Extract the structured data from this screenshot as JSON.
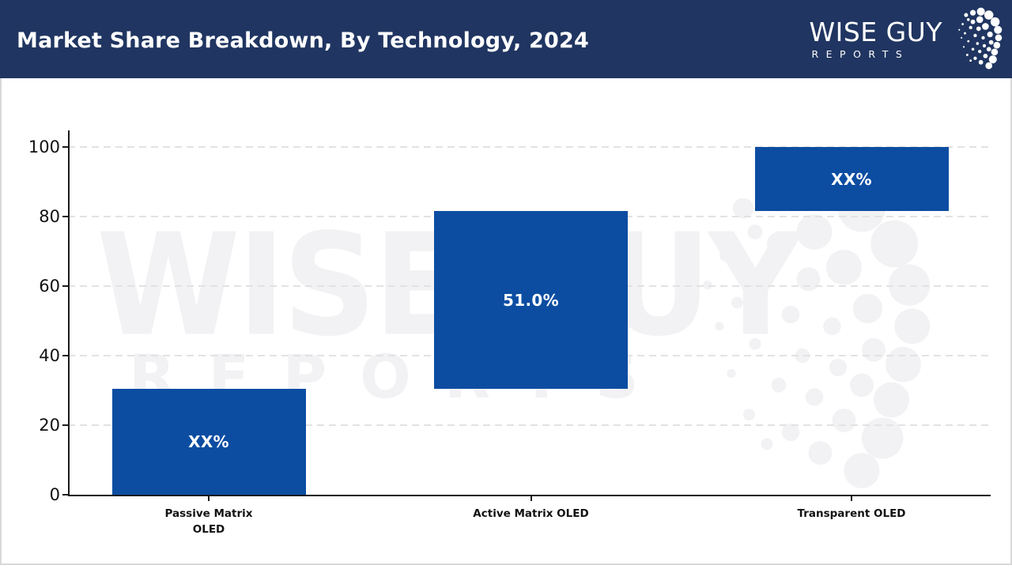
{
  "header": {
    "title": "Market Share Breakdown, By Technology, 2024",
    "logo": {
      "wordmark": "WISE GUY",
      "subtitle": "REPORTS"
    }
  },
  "watermark": {
    "wordmark": "WISE GUY",
    "subtitle": "REPORTS"
  },
  "colors": {
    "header_bg": "#203561",
    "bar_blue": "#0c4da2",
    "watermark_gray": "#f2f2f4",
    "gridline_gray": "#e2e2e2",
    "frame_gray": "#d8d8d8",
    "text_black": "#111111",
    "label_white": "#ffffff"
  },
  "chart_data": {
    "type": "bar",
    "variant": "waterfall-stacked",
    "title": "Market Share Breakdown, By Technology, 2024",
    "categories": [
      "Passive Matrix OLED",
      "Active Matrix OLED",
      "Transparent OLED"
    ],
    "axis_labels": [
      "Passive Matrix\nOLED",
      "Active Matrix OLED",
      "Transparent OLED"
    ],
    "bars": [
      {
        "category": "Passive Matrix OLED",
        "start": 0,
        "end": 30.5,
        "size": 30.5,
        "value_label": "XX%"
      },
      {
        "category": "Active Matrix OLED",
        "start": 30.5,
        "end": 81.5,
        "size": 51.0,
        "value_label": "51.0%"
      },
      {
        "category": "Transparent OLED",
        "start": 81.5,
        "end": 100,
        "size": 18.5,
        "value_label": "XX%"
      }
    ],
    "xlabel": "",
    "ylabel": "",
    "ylim": [
      0,
      100
    ],
    "yticks": [
      0,
      20,
      40,
      60,
      80,
      100
    ],
    "grid": "horizontal dashed",
    "legend": null,
    "bar_color": "#0c4da2"
  }
}
